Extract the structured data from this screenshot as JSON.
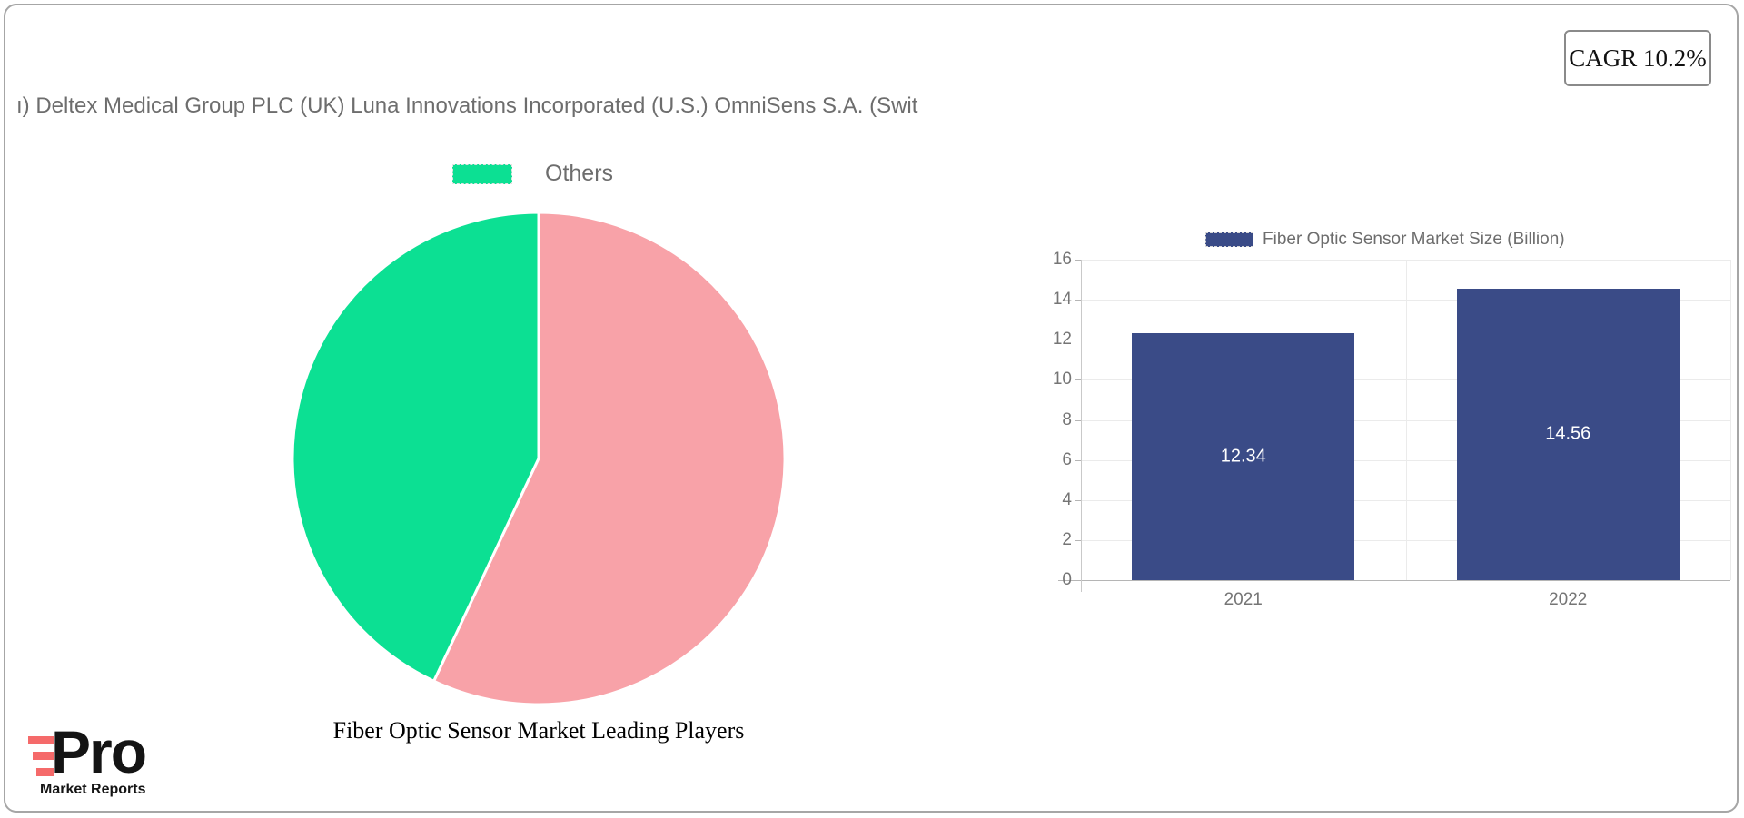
{
  "header": {
    "cagr_label": "CAGR 10.2%",
    "companies_text": "ı) Deltex Medical Group PLC (UK) Luna Innovations Incorporated (U.S.) OmniSens S.A. (Swit"
  },
  "colors": {
    "pie_green": "#0ce093",
    "pie_pink": "#f8a2a8",
    "bar_navy": "#3a4b87",
    "logo_coral": "#f56a6a",
    "text_grey": "#6d6d6d",
    "axis_grey": "#757575"
  },
  "logo": {
    "name": "Pro",
    "subtitle": "Market Reports"
  },
  "chart_data": [
    {
      "type": "pie",
      "title": "Fiber Optic Sensor Market Leading Players",
      "legend_label": "Others",
      "start_angle_deg": 0,
      "direction": "clockwise",
      "slices": [
        {
          "label": "",
          "value": 57,
          "color": "#f8a2a8"
        },
        {
          "label": "Others",
          "value": 43,
          "color": "#0ce093"
        }
      ]
    },
    {
      "type": "bar",
      "legend_label": "Fiber Optic Sensor Market Size (Billion)",
      "categories": [
        "2021",
        "2022"
      ],
      "values": [
        12.34,
        14.56
      ],
      "value_labels": [
        "12.34",
        "14.56"
      ],
      "bar_color": "#3a4b87",
      "ylim": [
        0,
        16
      ],
      "ytick_step": 2,
      "grid": true,
      "legend_position": "top"
    }
  ]
}
